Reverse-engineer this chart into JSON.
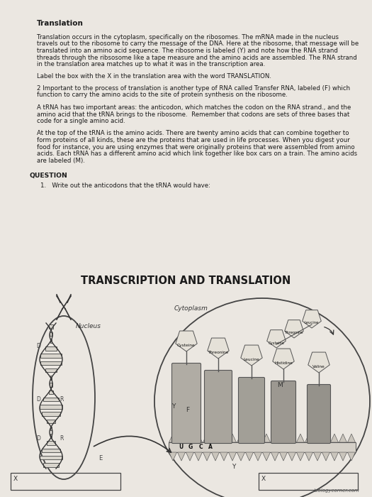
{
  "title": "Translation",
  "body_text_lines": [
    "Translation occurs in the cytoplasm, specifically on the ribosomes. The mRNA made in the nucleus",
    "travels out to the ribosome to carry the message of the DNA. Here at the ribosome, that message will be",
    "translated into an amino acid sequence. The ribosome is labeled (Y) and note how the RNA strand",
    "threads through the ribsosome like a tape measure and the amino acids are assembled. The RNA strand",
    "in the translation area matches up to what it was in the transcription area."
  ],
  "label_line": "Label the box with the X in the translation area with the word TRANSLATION.",
  "para2_lines": [
    "2 Important to the process of translation is another type of RNA called Transfer RNA, labeled (F) which",
    "function to carry the amino acids to the site of protein synthesis on the ribosome."
  ],
  "para3_lines": [
    "A tRNA has two important areas: the anticodon, which matches the codon on the RNA strand., and the",
    "amino acid that the tRNA brings to the ribosome.  Remember that codons are sets of three bases that",
    "code for a single amino acid."
  ],
  "para4_lines": [
    "At the top of the tRNA is the amino acids. There are twenty amino acids that can combine together to",
    "form proteins of all kinds, these are the proteins that are used in life processes. When you digest your",
    "food for instance, you are using enzymes that were originally proteins that were assembled from amino",
    "acids. Each tRNA has a different amino acid which link together like box cars on a train. The amino acids",
    "are labeled (M)."
  ],
  "question_header": "QUESTION",
  "question1": "1.   Write out the anticodons that the tRNA would have:",
  "diagram_title": "TRANSCRIPTION AND TRANSLATION",
  "bg_color": "#ebe7e1",
  "text_color": "#1a1a1a",
  "amino_acids_ribosome": [
    "Cysteine",
    "Threonine",
    "Leucine",
    "Histidine",
    "Valine"
  ],
  "amino_acids_above": [
    "Cysteine",
    "Threonine",
    "Leucine"
  ],
  "mRNA_bases": [
    "U",
    "G",
    "C",
    "A"
  ],
  "label_nucleus": "Nucleus",
  "label_cytoplasm": "Cytoplasm",
  "label_Y_ribosome": "Y",
  "label_Y_bottom": "Y",
  "label_F": "F",
  "label_M": "M",
  "label_D_top": "D",
  "label_D_mid": "D",
  "label_D_bot": "D",
  "label_R_mid": "R",
  "label_R_bot": "R",
  "label_E": "E",
  "box_label_left": "X",
  "box_label_right": "X",
  "biology_credit": "biologycorner.com"
}
